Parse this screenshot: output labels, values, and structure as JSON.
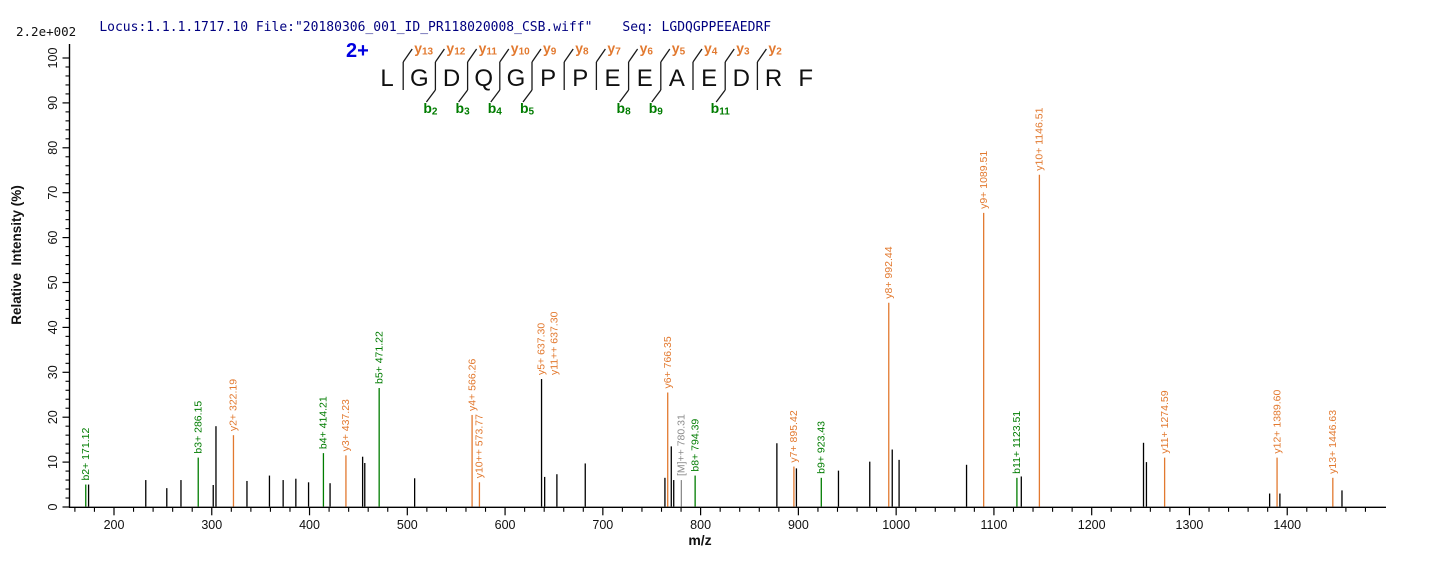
{
  "header": {
    "locus_file": "Locus:1.1.1.1717.10 File:\"20180306_001_ID_PR118020008_CSB.wiff\"",
    "seq": "Seq: LGDQGPPEEAEDRF"
  },
  "scale_value": "2.2e+002",
  "precursor_charge": "2+",
  "peptide": {
    "residues": [
      "L",
      "G",
      "D",
      "Q",
      "G",
      "P",
      "P",
      "E",
      "E",
      "A",
      "E",
      "D",
      "R",
      "F"
    ],
    "cleavages": [
      {
        "gap": 1,
        "y": "y13"
      },
      {
        "gap": 2,
        "y": "y12",
        "b": "b2"
      },
      {
        "gap": 3,
        "y": "y11",
        "b": "b3"
      },
      {
        "gap": 4,
        "y": "y10",
        "b": "b4"
      },
      {
        "gap": 5,
        "y": "y9",
        "b": "b5"
      },
      {
        "gap": 6,
        "y": "y8"
      },
      {
        "gap": 7,
        "y": "y7"
      },
      {
        "gap": 8,
        "y": "y6",
        "b": "b8"
      },
      {
        "gap": 9,
        "y": "y5",
        "b": "b9"
      },
      {
        "gap": 10,
        "y": "y4"
      },
      {
        "gap": 11,
        "y": "y3",
        "b": "b11"
      },
      {
        "gap": 12,
        "y": "y2"
      }
    ]
  },
  "colors": {
    "y_ion": "#e2792f",
    "b_ion": "#007c00",
    "precursor": "#8c8c8c",
    "peak": "#000000",
    "header": "#000080",
    "charge": "#0000e0",
    "axis": "#000000"
  },
  "chart_data": {
    "type": "bar",
    "title": "MS/MS fragmentation spectrum of peptide LGDQGPPEEAEDRF (2+)",
    "xlabel": "m/z",
    "ylabel": "Relative  Intensity (%)",
    "xlim": [
      155,
      1500
    ],
    "ylim": [
      0,
      100
    ],
    "x_major_ticks": [
      200,
      300,
      400,
      500,
      600,
      700,
      800,
      900,
      1000,
      1100,
      1200,
      1300,
      1400
    ],
    "x_minor_step": 20,
    "y_major_ticks": [
      0,
      10,
      20,
      30,
      40,
      50,
      60,
      70,
      80,
      90,
      100
    ],
    "y_minor_step": 2,
    "annotated_peaks": [
      {
        "mz": 171.12,
        "intensity": 5,
        "label": "b2+ 171.12",
        "key": "b"
      },
      {
        "mz": 286.15,
        "intensity": 11,
        "label": "b3+ 286.15",
        "key": "b"
      },
      {
        "mz": 322.19,
        "intensity": 16,
        "label": "y2+ 322.19",
        "key": "y"
      },
      {
        "mz": 414.21,
        "intensity": 12,
        "label": "b4+ 414.21",
        "key": "b"
      },
      {
        "mz": 437.23,
        "intensity": 11.5,
        "label": "y3+ 437.23",
        "key": "y"
      },
      {
        "mz": 471.22,
        "intensity": 26.5,
        "label": "b5+ 471.22",
        "key": "b"
      },
      {
        "mz": 566.26,
        "intensity": 20.5,
        "label": "y4+ 566.26",
        "key": "y"
      },
      {
        "mz": 573.77,
        "intensity": 5.5,
        "label": "y10++ 573.77",
        "key": "y"
      },
      {
        "mz": 637.3,
        "intensity": 28.5,
        "label": "y5+ 637.30",
        "label2": "y11++ 637.30",
        "key": "y",
        "peak_color": "black"
      },
      {
        "mz": 766.35,
        "intensity": 25.5,
        "label": "y6+ 766.35",
        "key": "y"
      },
      {
        "mz": 780.31,
        "intensity": 6,
        "label": "[M]++ 780.31",
        "key": "precursor"
      },
      {
        "mz": 794.39,
        "intensity": 7,
        "label": "b8+ 794.39",
        "key": "b"
      },
      {
        "mz": 895.42,
        "intensity": 9,
        "label": "y7+ 895.42",
        "key": "y"
      },
      {
        "mz": 923.43,
        "intensity": 6.5,
        "label": "b9+ 923.43",
        "key": "b"
      },
      {
        "mz": 992.44,
        "intensity": 45.5,
        "label": "y8+ 992.44",
        "key": "y"
      },
      {
        "mz": 1089.51,
        "intensity": 65.5,
        "label": "y9+ 1089.51",
        "key": "y"
      },
      {
        "mz": 1123.51,
        "intensity": 6.5,
        "label": "b11+ 1123.51",
        "key": "b"
      },
      {
        "mz": 1146.51,
        "intensity": 74,
        "label": "y10+ 1146.51",
        "key": "y"
      },
      {
        "mz": 1274.59,
        "intensity": 11,
        "label": "y11+ 1274.59",
        "key": "y"
      },
      {
        "mz": 1389.6,
        "intensity": 11,
        "label": "y12+ 1389.60",
        "key": "y"
      },
      {
        "mz": 1446.63,
        "intensity": 6.5,
        "label": "y13+ 1446.63",
        "key": "y"
      }
    ],
    "unannotated_peaks": [
      [
        174,
        5
      ],
      [
        232.5,
        6
      ],
      [
        254,
        4.2
      ],
      [
        268.5,
        6
      ],
      [
        301.5,
        4.9
      ],
      [
        304.3,
        18
      ],
      [
        336,
        5.8
      ],
      [
        359,
        7
      ],
      [
        373,
        6
      ],
      [
        386,
        6.3
      ],
      [
        399,
        5.5
      ],
      [
        421,
        5.3
      ],
      [
        454.3,
        11.2
      ],
      [
        456.5,
        9.8
      ],
      [
        507.5,
        6.4
      ],
      [
        640.5,
        6.7
      ],
      [
        653,
        7.3
      ],
      [
        682,
        9.7
      ],
      [
        763.5,
        6.5
      ],
      [
        770,
        13.5
      ],
      [
        772.5,
        6
      ],
      [
        878,
        14.2
      ],
      [
        898,
        8.6
      ],
      [
        941,
        8.1
      ],
      [
        973,
        10.1
      ],
      [
        996,
        12.8
      ],
      [
        1003,
        10.5
      ],
      [
        1072,
        9.4
      ],
      [
        1128,
        6.8
      ],
      [
        1253,
        14.3
      ],
      [
        1256,
        10
      ],
      [
        1382,
        3
      ],
      [
        1392.5,
        3
      ],
      [
        1456,
        3.7
      ]
    ],
    "legend": "off",
    "grid": "off"
  }
}
